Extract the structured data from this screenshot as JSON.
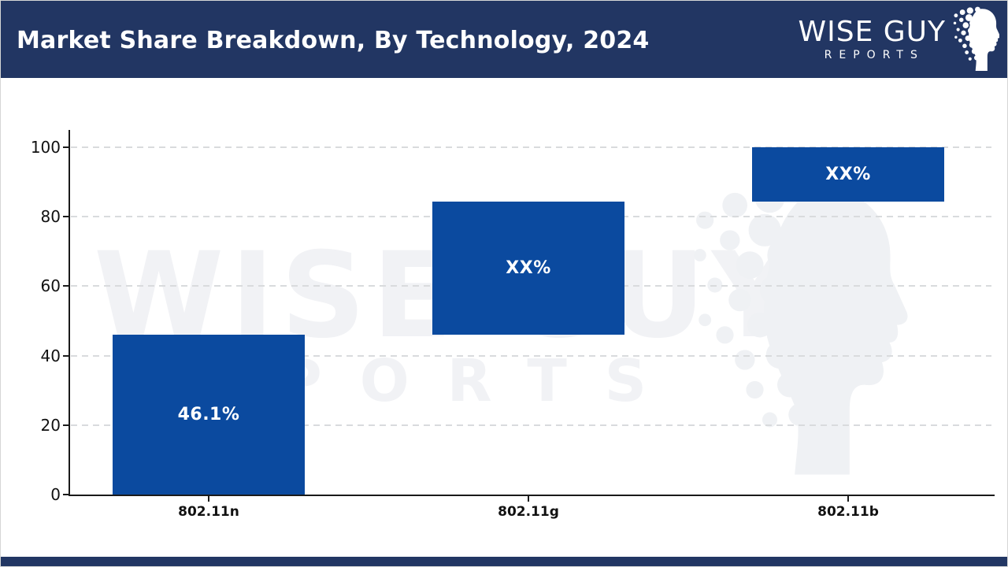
{
  "header": {
    "title": "Market Share Breakdown, By Technology, 2024",
    "logo": {
      "line1": "WISE GUY",
      "line2": "REPORTS"
    }
  },
  "watermark": {
    "line1": "WISE GUY",
    "line2": "REPORTS"
  },
  "chart_data": {
    "type": "bar",
    "subtype": "waterfall-breakdown",
    "title": "Market Share Breakdown, By Technology, 2024",
    "categories": [
      "802.11n",
      "802.11g",
      "802.11b"
    ],
    "segments": [
      {
        "category": "802.11n",
        "label": "46.1%",
        "start": 0,
        "end": 46.1
      },
      {
        "category": "802.11g",
        "label": "XX%",
        "start": 46.1,
        "end": 84.3
      },
      {
        "category": "802.11b",
        "label": "XX%",
        "start": 84.3,
        "end": 100
      }
    ],
    "xlabel": "",
    "ylabel": "",
    "ylim": [
      0,
      100
    ],
    "yticks": [
      "0",
      "20",
      "40",
      "60",
      "80",
      "100"
    ],
    "grid": "horizontal-dashed",
    "legend": "none",
    "bar_color": "#0b4a9f",
    "bar_label_color": "#ffffff"
  },
  "colors": {
    "header_bg": "#223663",
    "footer_bg": "#223663",
    "axis": "#1a1a1a",
    "gridline": "#d9dbdd",
    "watermark": "#f1f2f5",
    "accent_blue": "#0b4a9f"
  }
}
